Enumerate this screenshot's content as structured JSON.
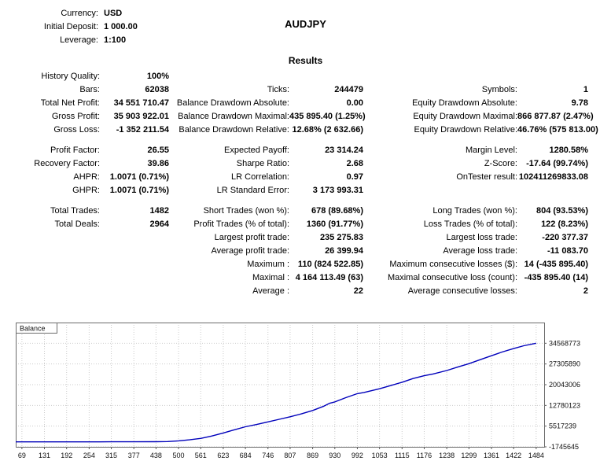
{
  "header": {
    "info": [
      {
        "label": "Currency:",
        "value": "USD"
      },
      {
        "label": "Initial Deposit:",
        "value": "1 000.00"
      },
      {
        "label": "Leverage:",
        "value": "1:100"
      }
    ],
    "symbol": "AUDJPY",
    "results_title": "Results"
  },
  "stats": {
    "groups": [
      {
        "rows": [
          [
            {
              "l": "History Quality:",
              "v": "100%"
            },
            null,
            null
          ],
          [
            {
              "l": "Bars:",
              "v": "62038"
            },
            {
              "l": "Ticks:",
              "v": "244479"
            },
            {
              "l": "Symbols:",
              "v": "1"
            }
          ],
          [
            {
              "l": "Total Net Profit:",
              "v": "34 551 710.47"
            },
            {
              "l": "Balance Drawdown Absolute:",
              "v": "0.00"
            },
            {
              "l": "Equity Drawdown Absolute:",
              "v": "9.78"
            }
          ],
          [
            {
              "l": "Gross Profit:",
              "v": "35 903 922.01"
            },
            {
              "l": "Balance Drawdown Maximal:",
              "v": "435 895.40 (1.25%)"
            },
            {
              "l": "Equity Drawdown Maximal:",
              "v": "866 877.87 (2.47%)"
            }
          ],
          [
            {
              "l": "Gross Loss:",
              "v": "-1 352 211.54"
            },
            {
              "l": "Balance Drawdown Relative:",
              "v": "12.68% (2 632.66)"
            },
            {
              "l": "Equity Drawdown Relative:",
              "v": "46.76% (575 813.00)"
            }
          ]
        ]
      },
      {
        "rows": [
          [
            {
              "l": "Profit Factor:",
              "v": "26.55"
            },
            {
              "l": "Expected Payoff:",
              "v": "23 314.24"
            },
            {
              "l": "Margin Level:",
              "v": "1280.58%"
            }
          ],
          [
            {
              "l": "Recovery Factor:",
              "v": "39.86"
            },
            {
              "l": "Sharpe Ratio:",
              "v": "2.68"
            },
            {
              "l": "Z-Score:",
              "v": "-17.64 (99.74%)"
            }
          ],
          [
            {
              "l": "AHPR:",
              "v": "1.0071 (0.71%)"
            },
            {
              "l": "LR Correlation:",
              "v": "0.97"
            },
            {
              "l": "OnTester result:",
              "v": "102411269833.08"
            }
          ],
          [
            {
              "l": "GHPR:",
              "v": "1.0071 (0.71%)"
            },
            {
              "l": "LR Standard Error:",
              "v": "3 173 993.31"
            },
            null
          ]
        ]
      },
      {
        "rows": [
          [
            {
              "l": "Total Trades:",
              "v": "1482"
            },
            {
              "l": "Short Trades (won %):",
              "v": "678 (89.68%)"
            },
            {
              "l": "Long Trades (won %):",
              "v": "804 (93.53%)"
            }
          ],
          [
            {
              "l": "Total Deals:",
              "v": "2964"
            },
            {
              "l": "Profit Trades (% of total):",
              "v": "1360 (91.77%)"
            },
            {
              "l": "Loss Trades (% of total):",
              "v": "122 (8.23%)"
            }
          ],
          [
            null,
            {
              "l": "Largest profit trade:",
              "v": "235 275.83"
            },
            {
              "l": "Largest loss trade:",
              "v": "-220 377.37"
            }
          ],
          [
            null,
            {
              "l": "Average profit trade:",
              "v": "26 399.94"
            },
            {
              "l": "Average loss trade:",
              "v": "-11 083.70"
            }
          ],
          [
            null,
            {
              "l": "Maximum :",
              "v": "110 (824 522.85)"
            },
            {
              "l": "Maximum consecutive losses ($):",
              "v": "14 (-435 895.40)"
            }
          ],
          [
            null,
            {
              "l": "Maximal :",
              "v": "4 164 113.49 (63)"
            },
            {
              "l": "Maximal consecutive loss (count):",
              "v": "-435 895.40 (14)"
            }
          ],
          [
            null,
            {
              "l": "Average :",
              "v": "22"
            },
            {
              "l": "Average consecutive losses:",
              "v": "2"
            }
          ]
        ]
      }
    ]
  },
  "chart_data": {
    "type": "line",
    "title": "Balance",
    "line_color": "#0000bb",
    "grid": true,
    "legend_position": "top-left",
    "xlabel": "",
    "ylabel": "",
    "xlim": [
      52,
      1506
    ],
    "ylim": [
      -1745645,
      41831659
    ],
    "x_ticks": [
      69,
      131,
      192,
      254,
      315,
      377,
      438,
      500,
      561,
      623,
      684,
      746,
      807,
      869,
      930,
      992,
      1053,
      1115,
      1176,
      1238,
      1299,
      1361,
      1422,
      1484
    ],
    "y_ticks": [
      34568773,
      27305890,
      20043006,
      12780123,
      5517239,
      -1745645
    ],
    "series": [
      {
        "name": "Balance",
        "x": [
          52,
          131,
          192,
          254,
          315,
          377,
          438,
          470,
          500,
          530,
          561,
          590,
          623,
          650,
          684,
          715,
          746,
          777,
          807,
          838,
          869,
          900,
          915,
          930,
          960,
          992,
          1010,
          1053,
          1085,
          1115,
          1145,
          1176,
          1200,
          1238,
          1270,
          1299,
          1330,
          1361,
          1390,
          1422,
          1450,
          1484
        ],
        "y": [
          1000,
          2000,
          3000,
          5000,
          8000,
          15000,
          40000,
          100000,
          350000,
          700000,
          1200000,
          2000000,
          3100000,
          4100000,
          5300000,
          6100000,
          7000000,
          7900000,
          8800000,
          9800000,
          11000000,
          12500000,
          13500000,
          14000000,
          15500000,
          16900000,
          17300000,
          18600000,
          19800000,
          20900000,
          22200000,
          23200000,
          23800000,
          25000000,
          26300000,
          27400000,
          28800000,
          30200000,
          31500000,
          32700000,
          33700000,
          34568773
        ]
      }
    ]
  }
}
